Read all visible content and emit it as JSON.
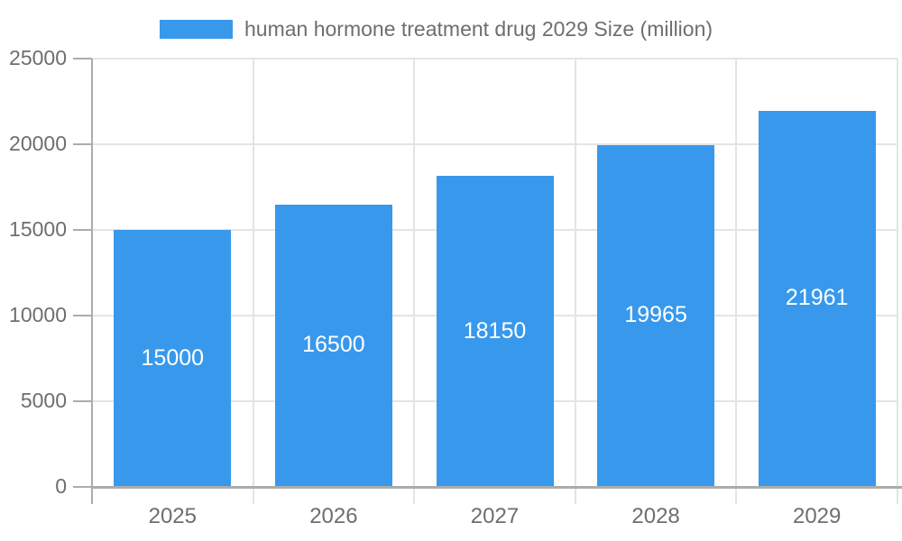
{
  "chart_data": {
    "type": "bar",
    "title": "",
    "legend": "human hormone treatment drug 2029 Size (million)",
    "legend_position": "top",
    "categories": [
      "2025",
      "2026",
      "2027",
      "2028",
      "2029"
    ],
    "values": [
      15000,
      16500,
      18150,
      19965,
      21961
    ],
    "value_labels": [
      "15000",
      "16500",
      "18150",
      "19965",
      "21961"
    ],
    "xlabel": "",
    "ylabel": "",
    "ylim": [
      0,
      25000
    ],
    "ytick_step": 5000,
    "yticks": [
      0,
      5000,
      10000,
      15000,
      20000,
      25000
    ],
    "grid": true,
    "colors": {
      "bar": "#3899EC",
      "value_label": "#FFFFFF",
      "axis_text": "#6E6E6E",
      "grid_line": "#E4E4E4",
      "axis_line": "#ACACAC",
      "background": "#FFFFFF"
    }
  }
}
